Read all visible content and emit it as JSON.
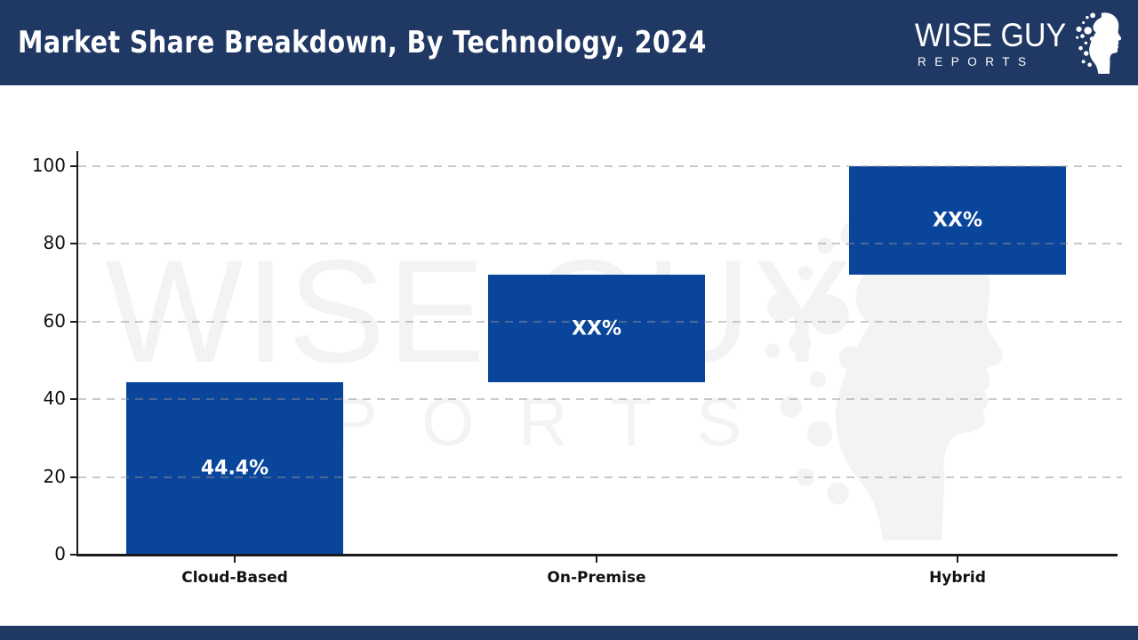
{
  "header": {
    "title": "Market Share Breakdown, By Technology, 2024",
    "bg_color": "#1F3864",
    "logo": {
      "line1": "WISE GUY",
      "line2": "REPORTS"
    }
  },
  "footer": {
    "bg_color": "#1F3864"
  },
  "watermark": {
    "line1": "WISE GUY",
    "line2": "REPORTS",
    "color": "#F3F3F3"
  },
  "chart_data": {
    "type": "bar",
    "subtype": "waterfall",
    "title": "Market Share Breakdown, By Technology, 2024",
    "categories": [
      "Cloud-Based",
      "On-Premise",
      "Hybrid"
    ],
    "segments": [
      {
        "category": "Cloud-Based",
        "start": 0,
        "end": 44.4,
        "label": "44.4%"
      },
      {
        "category": "On-Premise",
        "start": 44.4,
        "end": 72,
        "label": "XX%"
      },
      {
        "category": "Hybrid",
        "start": 72,
        "end": 100,
        "label": "XX%"
      }
    ],
    "xlabel": "",
    "ylabel": "",
    "ylim": [
      0,
      100
    ],
    "yticks": [
      0,
      20,
      40,
      60,
      80,
      100
    ],
    "grid": "horizontal-dashed",
    "legend": "none",
    "bar_color": "#0A459C",
    "bar_label_color": "#FFFFFF",
    "axis_color": "#1a1a1a"
  }
}
